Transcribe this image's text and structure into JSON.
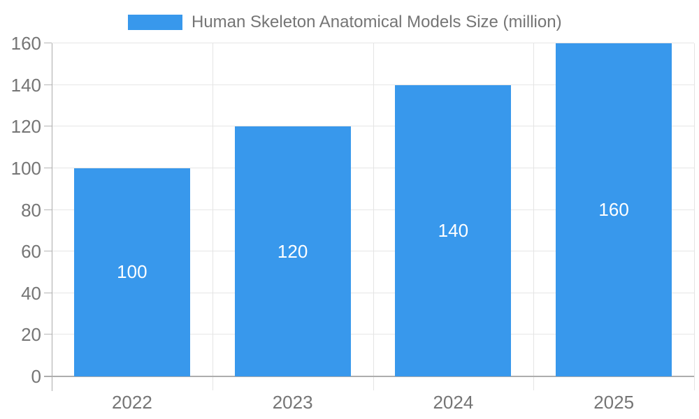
{
  "legend": {
    "label": "Human Skeleton Anatomical Models Size (million)",
    "swatch_color": "#3898EC"
  },
  "chart_data": {
    "type": "bar",
    "title": "Human Skeleton Anatomical Models Size (million)",
    "categories": [
      "2022",
      "2023",
      "2024",
      "2025"
    ],
    "values": [
      100,
      120,
      140,
      160
    ],
    "series": [
      {
        "name": "Human Skeleton Anatomical Models Size (million)",
        "values": [
          100,
          120,
          140,
          160
        ]
      }
    ],
    "xlabel": "",
    "ylabel": "",
    "ylim": [
      0,
      160
    ],
    "ytick_step": 20,
    "grid": true,
    "legend_position": "top-center",
    "value_label_position": "inside-center",
    "value_label_color": "#ffffff"
  },
  "colors": {
    "bar": "#3898EC",
    "grid_line": "#E6E6E6",
    "axis_line": "#ADADAD",
    "tick_label": "#757575",
    "title_text": "#757575",
    "background": "#ffffff"
  }
}
